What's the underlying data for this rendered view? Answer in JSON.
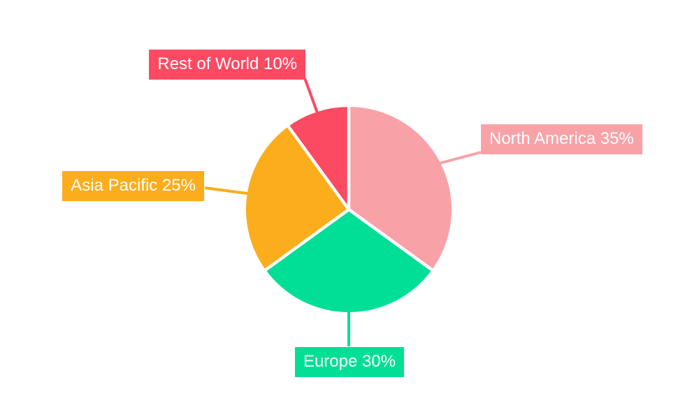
{
  "chart_data": {
    "type": "pie",
    "start_angle_deg": 0,
    "direction": "clockwise",
    "background_color": "#ffffff",
    "separator_color": "#ffffff",
    "label_text_color": "#ffffff",
    "slices": [
      {
        "label": "North America",
        "value": 35,
        "unit": "%",
        "color": "#F8A2A8",
        "callout": "North America 35%"
      },
      {
        "label": "Europe",
        "value": 30,
        "unit": "%",
        "color": "#00DF95",
        "callout": "Europe 30%"
      },
      {
        "label": "Asia Pacific",
        "value": 25,
        "unit": "%",
        "color": "#FBAD1B",
        "callout": "Asia Pacific 25%"
      },
      {
        "label": "Rest of World",
        "value": 10,
        "unit": "%",
        "color": "#FC4A63",
        "callout": "Rest of World 10%"
      }
    ]
  }
}
